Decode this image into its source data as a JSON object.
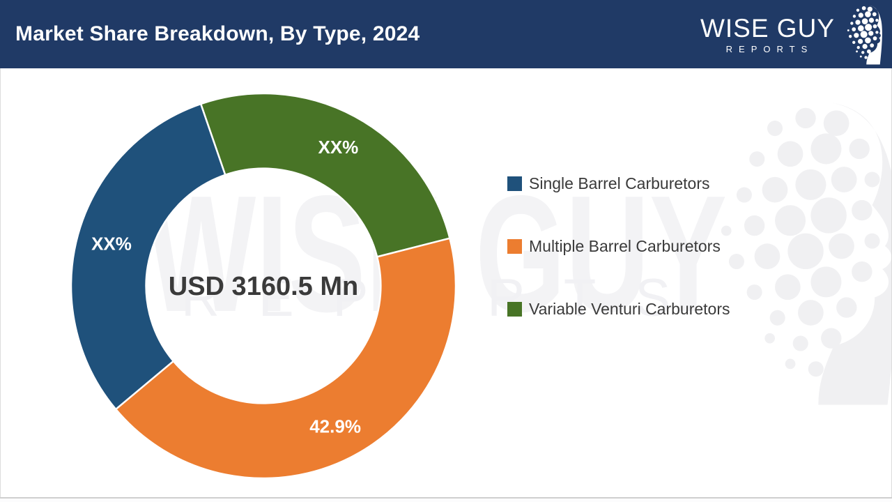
{
  "header": {
    "title": "Market Share Breakdown, By Type, 2024",
    "bg_color": "#203A66",
    "brand": {
      "name": "WISE GUY",
      "sub": "REPORTS"
    }
  },
  "watermark": {
    "line1": "WISE GUY",
    "line2": "REPORTS"
  },
  "chart_data": {
    "type": "pie",
    "variant": "donut",
    "title": "Market Share Breakdown, By Type, 2024",
    "center_label": "USD 3160.5 Mn",
    "start_angle_deg": -19,
    "inner_radius_ratio": 0.61,
    "label_distance_ratio": 0.82,
    "legend_position": "right",
    "segments": [
      {
        "label": "Variable Venturi Carburetors",
        "display_value": "XX%",
        "pct_estimated": 26.3,
        "color": "#487426"
      },
      {
        "label": "Multiple Barrel Carburetors",
        "display_value": "42.9%",
        "pct_estimated": 42.9,
        "color": "#EC7D30"
      },
      {
        "label": "Single Barrel Carburetors",
        "display_value": "XX%",
        "pct_estimated": 30.8,
        "color": "#1F517B"
      }
    ]
  },
  "legend": {
    "items": [
      {
        "label": "Single Barrel Carburetors",
        "color": "#1F517B"
      },
      {
        "label": "Multiple Barrel Carburetors",
        "color": "#EC7D30"
      },
      {
        "label": "Variable Venturi Carburetors",
        "color": "#487426"
      }
    ]
  }
}
